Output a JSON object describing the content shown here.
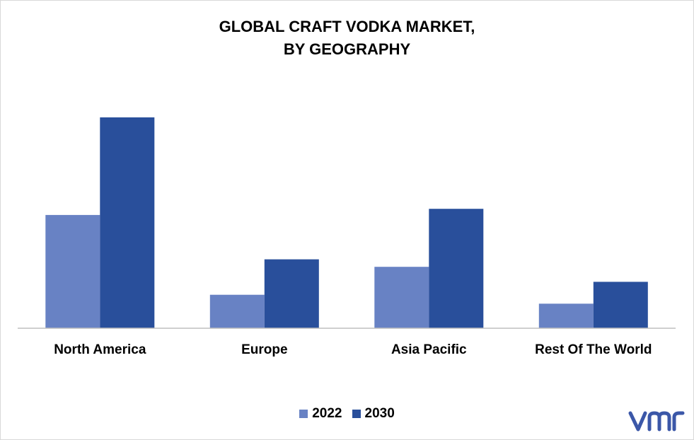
{
  "title_line1": "GLOBAL CRAFT VODKA MARKET,",
  "title_line2": "BY GEOGRAPHY",
  "colors": {
    "s2022": "#6882c4",
    "s2030": "#294f9b",
    "axis": "#bfbfbf",
    "logo": "#3b57a8"
  },
  "logo_icon": "vmr-logo-icon",
  "chart_data": {
    "type": "bar",
    "categories": [
      "North America",
      "Europe",
      "Asia Pacific",
      "Rest Of The World"
    ],
    "series": [
      {
        "name": "2022",
        "values": [
          166,
          49,
          90,
          36
        ]
      },
      {
        "name": "2030",
        "values": [
          309,
          101,
          175,
          68
        ]
      }
    ],
    "ylim": [
      0,
      340
    ],
    "grid": false,
    "legend": "bottom-center"
  }
}
